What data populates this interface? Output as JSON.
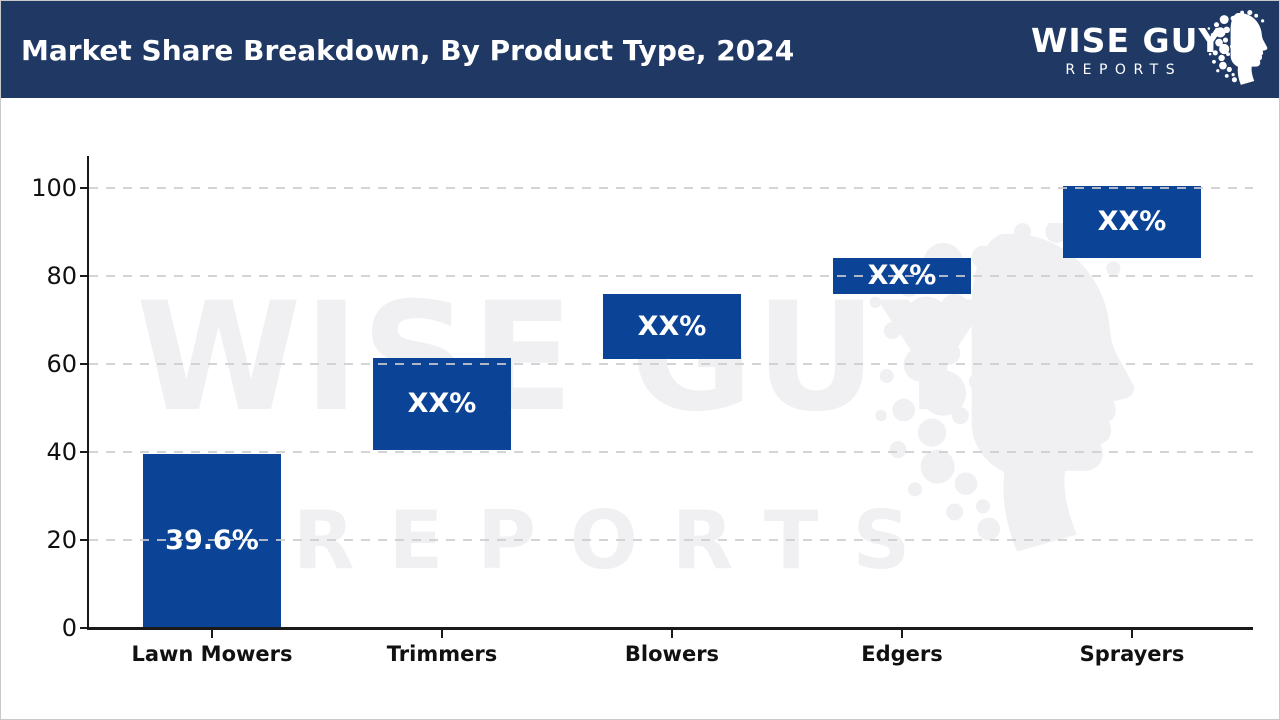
{
  "header": {
    "title": "Market Share Breakdown, By Product Type, 2024",
    "logo": {
      "line1": "WISE GUY",
      "line2": "REPORTS"
    }
  },
  "watermark": {
    "line1": "WISE GUY",
    "line2": "REPORTS"
  },
  "chart_data": {
    "type": "bar",
    "subtype": "waterfall",
    "title": "Market Share Breakdown, By Product Type, 2024",
    "categories": [
      "Lawn Mowers",
      "Trimmers",
      "Blowers",
      "Edgers",
      "Sprayers"
    ],
    "segments": [
      {
        "category": "Lawn Mowers",
        "start": 0,
        "end": 39.6,
        "label": "39.6%"
      },
      {
        "category": "Trimmers",
        "start": 40.4,
        "end": 61.3,
        "label": "XX%"
      },
      {
        "category": "Blowers",
        "start": 61.1,
        "end": 75.9,
        "label": "XX%"
      },
      {
        "category": "Edgers",
        "start": 75.9,
        "end": 84.1,
        "label": "XX%"
      },
      {
        "category": "Sprayers",
        "start": 84.1,
        "end": 100.5,
        "label": "XX%"
      }
    ],
    "xlabel": "",
    "ylabel": "",
    "y_ticks": [
      0,
      20,
      40,
      60,
      80,
      100
    ],
    "ylim": [
      0,
      106
    ],
    "grid": {
      "style": "dashed",
      "color": "#d9d9d9",
      "drawn_over_bars": true
    },
    "legend": "none"
  },
  "colors": {
    "header_bg": "#1f3864",
    "bar_fill": "#0b4397",
    "bar_label": "#ffffff",
    "axis": "#1a1a1a",
    "watermark": "#f0f0f3",
    "page_border": "#c9c9c9"
  }
}
